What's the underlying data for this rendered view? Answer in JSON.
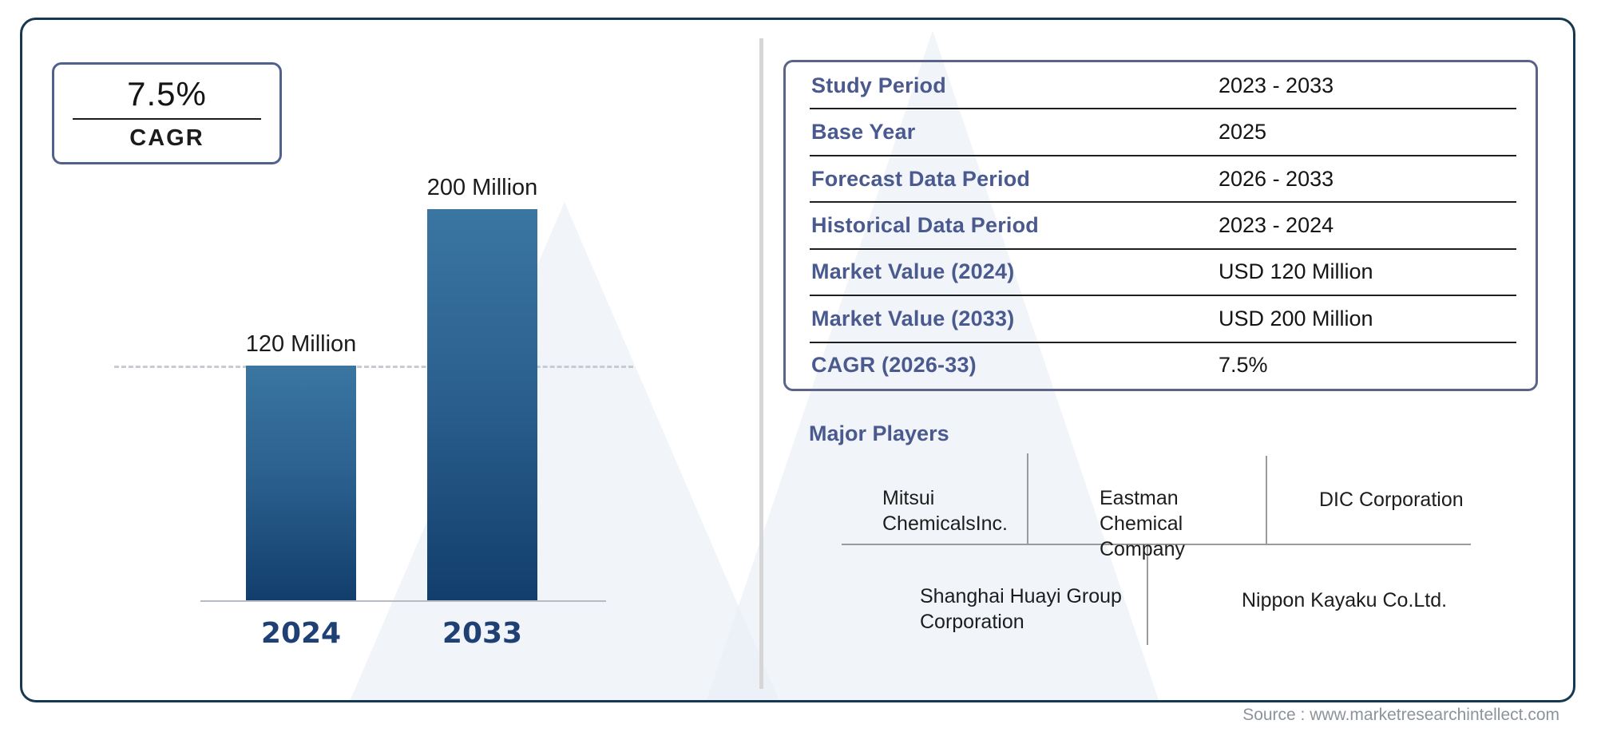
{
  "colors": {
    "frame_border": "#163850",
    "panel_border": "#5b6488",
    "label_blue": "#4a5a8f",
    "bar_gradient_top": "#3a76a1",
    "bar_gradient_bottom": "#123e6c",
    "year_label": "#1e4075",
    "text_dark": "#141414",
    "diagram_line_gray": "#9b9b9b",
    "watermark_fill": "#edf1f7"
  },
  "cagr_badge": {
    "value": "7.5%",
    "label": "CAGR"
  },
  "chart_data": {
    "type": "bar",
    "categories": [
      "2024",
      "2033"
    ],
    "values": [
      120,
      200
    ],
    "bar_labels": [
      "120 Million",
      "200 Million"
    ],
    "unit": "USD Million",
    "title": "",
    "xlabel": "",
    "ylabel": "",
    "ylim": [
      0,
      210
    ],
    "reference_line": 120,
    "grid": false,
    "legend": false
  },
  "info_table": {
    "rows": [
      {
        "label": "Study Period",
        "value": "2023 - 2033"
      },
      {
        "label": "Base Year",
        "value": "2025"
      },
      {
        "label": "Forecast Data Period",
        "value": "2026 - 2033"
      },
      {
        "label": "Historical Data Period",
        "value": "2023 - 2024"
      },
      {
        "label": "Market Value (2024)",
        "value": "USD 120 Million"
      },
      {
        "label": "Market Value (2033)",
        "value": "USD 200 Million"
      },
      {
        "label": "CAGR (2026-33)",
        "value": "7.5%"
      }
    ]
  },
  "major_players": {
    "heading": "Major Players",
    "top_row": [
      "Mitsui ChemicalsInc.",
      "Eastman Chemical Company",
      "DIC Corporation"
    ],
    "bottom_row": [
      "Shanghai Huayi Group Corporation",
      "Nippon Kayaku Co.Ltd."
    ]
  },
  "source": "Source : www.marketresearchintellect.com"
}
